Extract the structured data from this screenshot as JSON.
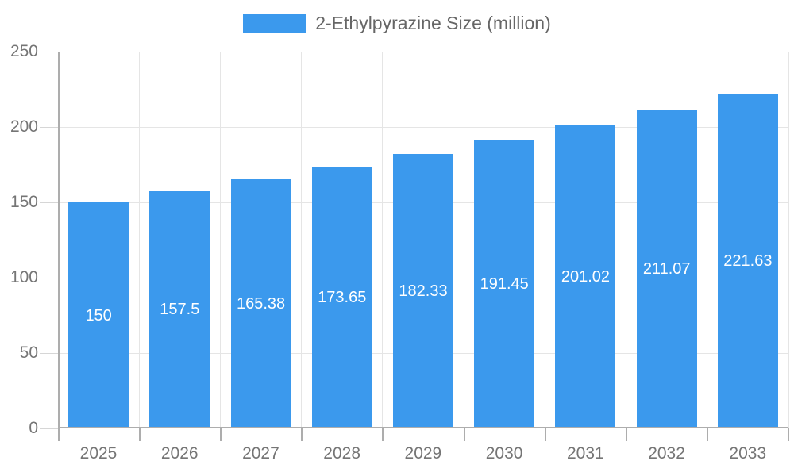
{
  "chart_data": {
    "type": "bar",
    "title": "2-Ethylpyrazine Size (million)",
    "categories": [
      "2025",
      "2026",
      "2027",
      "2028",
      "2029",
      "2030",
      "2031",
      "2032",
      "2033"
    ],
    "series": [
      {
        "name": "2-Ethylpyrazine Size (million)",
        "values": [
          150,
          157.5,
          165.38,
          173.65,
          182.33,
          191.45,
          201.02,
          211.07,
          221.63
        ]
      }
    ],
    "value_labels": [
      "150",
      "157.5",
      "165.38",
      "173.65",
      "182.33",
      "191.45",
      "201.02",
      "211.07",
      "221.63"
    ],
    "xlabel": "",
    "ylabel": "",
    "ylim": [
      0,
      250
    ],
    "yticks": [
      0,
      50,
      100,
      150,
      200,
      250
    ],
    "grid": true,
    "legend_position": "top-center",
    "colors": {
      "bar": "#3B99ED",
      "bar_label_text": "#ffffff",
      "axis_line": "#adadad",
      "grid_line": "#e5e5e5",
      "tick_line": "#d6d6d6",
      "axis_text": "#757575",
      "legend_text": "#666666",
      "background": "#ffffff"
    }
  }
}
